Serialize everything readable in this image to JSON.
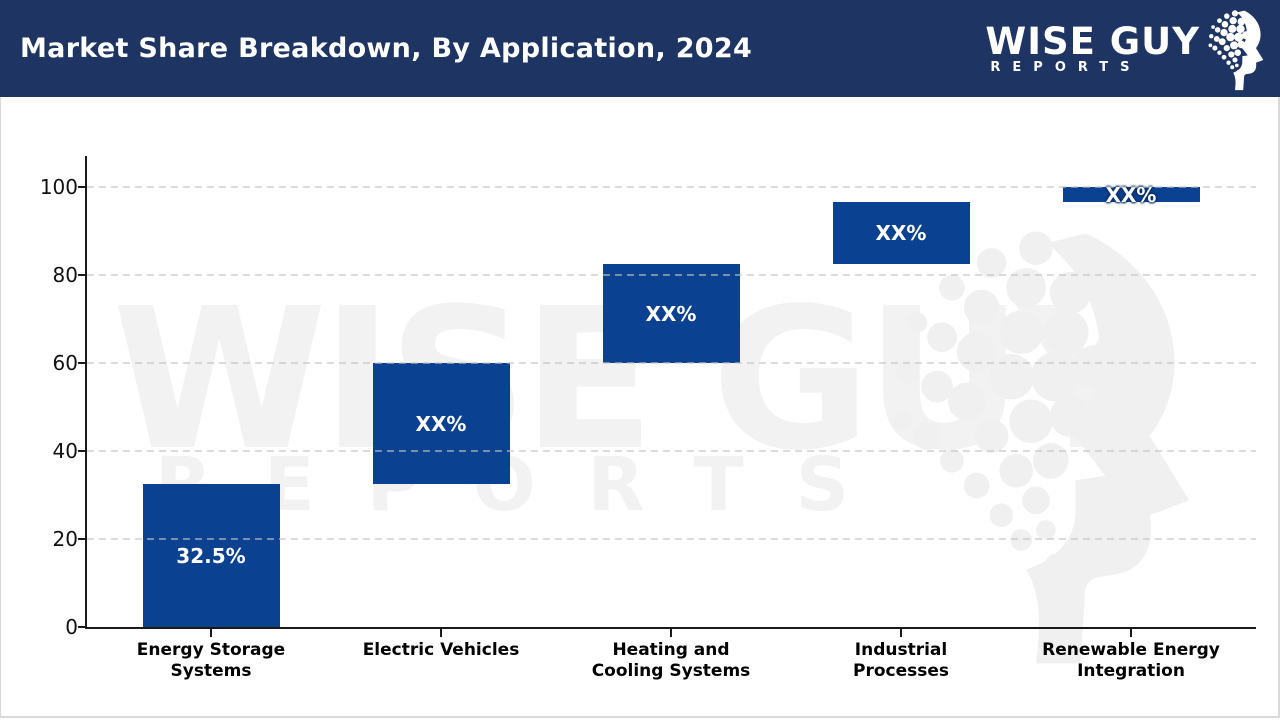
{
  "header": {
    "title": "Market Share Breakdown, By Application, 2024",
    "background": "#1e3563",
    "logo": {
      "line1": "WISE GUY",
      "line2": "REPORTS",
      "icon": "head-profile-dots-icon"
    }
  },
  "watermark": {
    "line1": "WISE GUY",
    "line2": "REPORTS",
    "icon": "head-profile-dots-icon",
    "color": "#f2f2f2"
  },
  "chart_data": {
    "type": "bar",
    "subtype": "waterfall",
    "title": "Market Share Breakdown, By Application, 2024",
    "xlabel": "",
    "ylabel": "",
    "categories": [
      "Energy Storage Systems",
      "Electric Vehicles",
      "Heating and Cooling Systems",
      "Industrial Processes",
      "Renewable Energy Integration"
    ],
    "category_lines": [
      [
        "Energy Storage",
        "Systems"
      ],
      [
        "Electric Vehicles"
      ],
      [
        "Heating and",
        "Cooling Systems"
      ],
      [
        "Industrial",
        "Processes"
      ],
      [
        "Renewable Energy",
        "Integration"
      ]
    ],
    "segments": [
      {
        "category": "Energy Storage Systems",
        "start": 0,
        "end": 32.5,
        "label": "32.5%"
      },
      {
        "category": "Electric Vehicles",
        "start": 32.5,
        "end": 60,
        "label": "XX%"
      },
      {
        "category": "Heating and Cooling Systems",
        "start": 60,
        "end": 82.5,
        "label": "XX%"
      },
      {
        "category": "Industrial Processes",
        "start": 82.5,
        "end": 96.5,
        "label": "XX%"
      },
      {
        "category": "Renewable Energy Integration",
        "start": 96.5,
        "end": 100,
        "label": "XX%"
      }
    ],
    "yticks": [
      0,
      20,
      40,
      60,
      80,
      100
    ],
    "ylim": [
      0,
      107
    ],
    "grid": "dashed-horizontal",
    "legend": "none",
    "bar_color": "#0a4191",
    "label_color": "#ffffff"
  }
}
